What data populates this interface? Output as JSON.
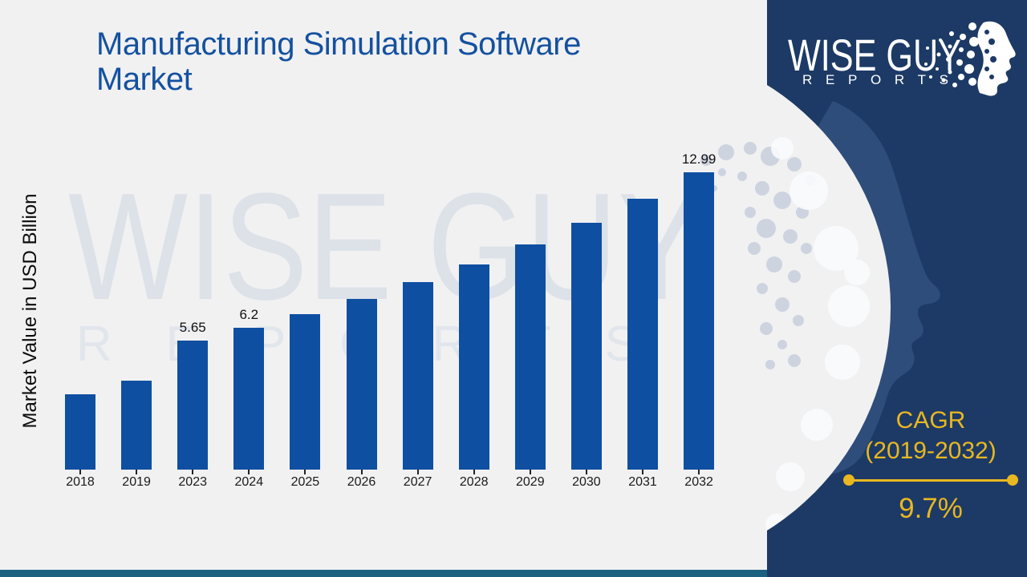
{
  "page": {
    "title_line1": "Manufacturing Simulation Software",
    "title_line2": "Market"
  },
  "branding": {
    "logo_text": "WISE GUY",
    "logo_subtext": "REPORTS",
    "watermark_text": "WISE GUY",
    "watermark_subtext": "REPORTS"
  },
  "cagr": {
    "label_line1": "CAGR",
    "label_line2": "(2019-2032)",
    "value": "9.7%"
  },
  "chart_data": {
    "type": "bar",
    "title": "Manufacturing Simulation Software Market",
    "xlabel": "",
    "ylabel": "Market Value in USD Billion",
    "categories": [
      "2018",
      "2019",
      "2023",
      "2024",
      "2025",
      "2026",
      "2027",
      "2028",
      "2029",
      "2030",
      "2031",
      "2032"
    ],
    "values": [
      3.3,
      3.9,
      5.65,
      6.2,
      6.8,
      7.46,
      8.18,
      8.97,
      9.84,
      10.8,
      11.84,
      12.99
    ],
    "bar_labels": {
      "2023": "5.65",
      "2024": "6.2",
      "2032": "12.99"
    },
    "ylim": [
      0,
      13.5
    ],
    "grid": false,
    "legend": "none",
    "units": "USD Billion"
  },
  "colors": {
    "bar": "#0f4fa2",
    "title": "#14519f",
    "navy_panel": "#1d3a66",
    "face_silhouette": "#2f4d7a",
    "gold_accent": "#e9b720",
    "teal_strip": "#1c617f",
    "watermark": "#dde1e8",
    "background": "#f1f1f2"
  }
}
